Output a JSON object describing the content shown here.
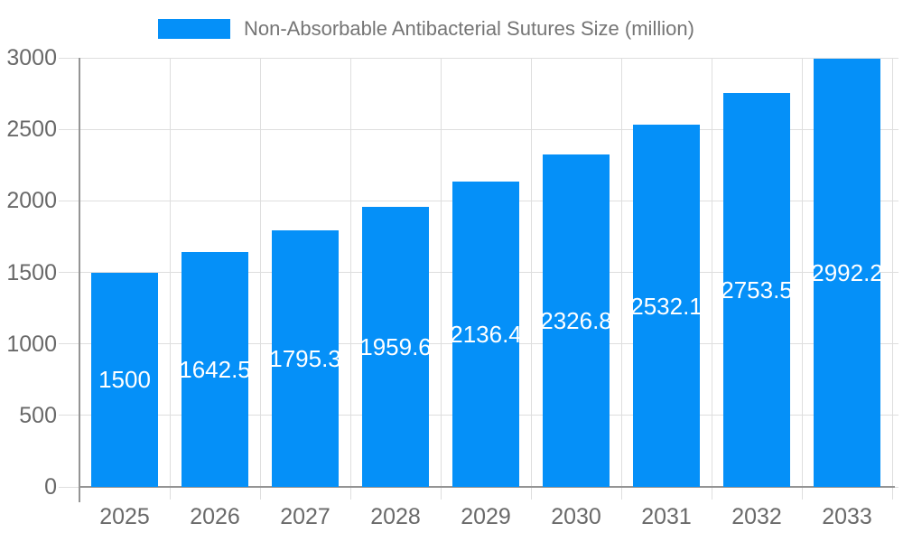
{
  "chart_data": {
    "type": "bar",
    "title": "",
    "series_name": "Non-Absorbable Antibacterial Sutures Size (million)",
    "categories": [
      "2025",
      "2026",
      "2027",
      "2028",
      "2029",
      "2030",
      "2031",
      "2032",
      "2033"
    ],
    "values": [
      1500,
      1642.5,
      1795.3,
      1959.6,
      2136.4,
      2326.8,
      2532.1,
      2753.5,
      2992.2
    ],
    "value_labels": [
      "1500",
      "1642.5",
      "1795.3",
      "1959.6",
      "2136.4",
      "2326.8",
      "2532.1",
      "2753.5",
      "2992.2"
    ],
    "xlabel": "",
    "ylabel": "",
    "ylim": [
      0,
      3000
    ],
    "yticks": [
      0,
      500,
      1000,
      1500,
      2000,
      2500,
      3000
    ],
    "grid": true,
    "legend_position": "top",
    "value_label_position": "inside-middle",
    "colors": {
      "bar": "#0590f8",
      "grid": "#dedede",
      "axis": "#949494",
      "axis_label": "#696969",
      "legend_text": "#757575",
      "value_label": "#ffffff",
      "background": "#ffffff"
    }
  }
}
